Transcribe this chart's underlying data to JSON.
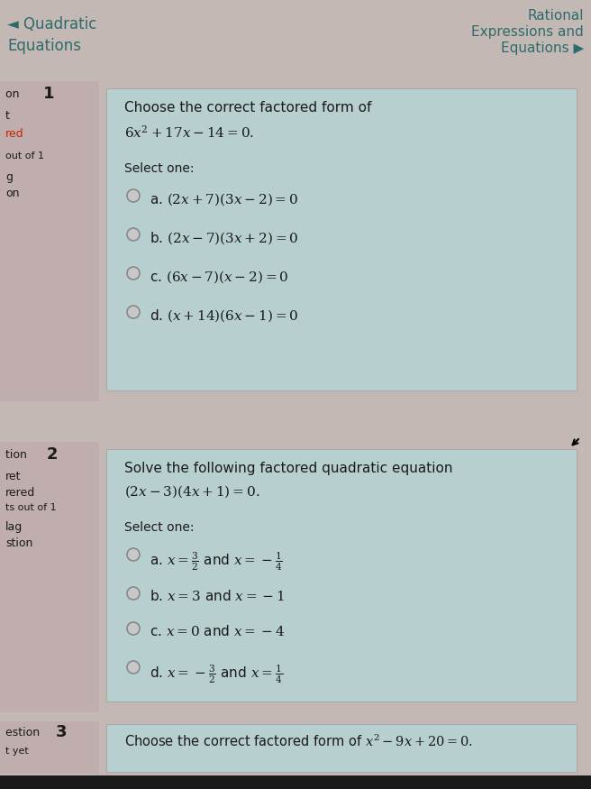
{
  "fig_w": 6.56,
  "fig_h": 8.75,
  "dpi": 100,
  "bg_color": "#c4b8b5",
  "header_bg": "#c4b8b5",
  "sidebar_color": "#c0aeae",
  "question_box_color": "#b8cfd0",
  "header_left_color": "#2d6b6b",
  "header_right_color": "#2d6b6b",
  "text_color": "#1a1a1a",
  "red_color": "#cc2200",
  "radio_face": "#c8c8c8",
  "radio_edge": "#888888",
  "bottom_bar": "#1a1a1a",
  "q1_title": "Choose the correct factored form of",
  "q1_eq": "$6x^2 + 17x - 14 = 0.$",
  "q1_select": "Select one:",
  "q1_opts": [
    "a. $(2x + 7)(3x - 2) = 0$",
    "b. $(2x - 7)(3x + 2) = 0$",
    "c. $(6x - 7)(x - 2) = 0$",
    "d. $(x + 14)(6x - 1) = 0$"
  ],
  "q2_title": "Solve the following factored quadratic equation",
  "q2_eq": "$(2x - 3)(4x + 1) = 0.$",
  "q2_select": "Select one:",
  "q2_opts": [
    "a. $x = \\frac{3}{2}$ and $x = -\\frac{1}{4}$",
    "b. $x = 3$ and $x = -1$",
    "c. $x = 0$ and $x = -4$",
    "d. $x = -\\frac{3}{2}$ and $x = \\frac{1}{4}$"
  ],
  "q3_text": "Choose the correct factored form of $x^2 - 9x + 20 = 0.$",
  "sidebar_texts_q1": [
    "on 1",
    "t",
    "red",
    "",
    "out of 1",
    "g",
    "on"
  ],
  "sidebar_texts_q2": [
    "tion 2",
    "ret",
    "rered",
    "ts out of 1",
    "lag",
    "stion"
  ],
  "sidebar_texts_q3": [
    "estion 3",
    "t yet"
  ]
}
